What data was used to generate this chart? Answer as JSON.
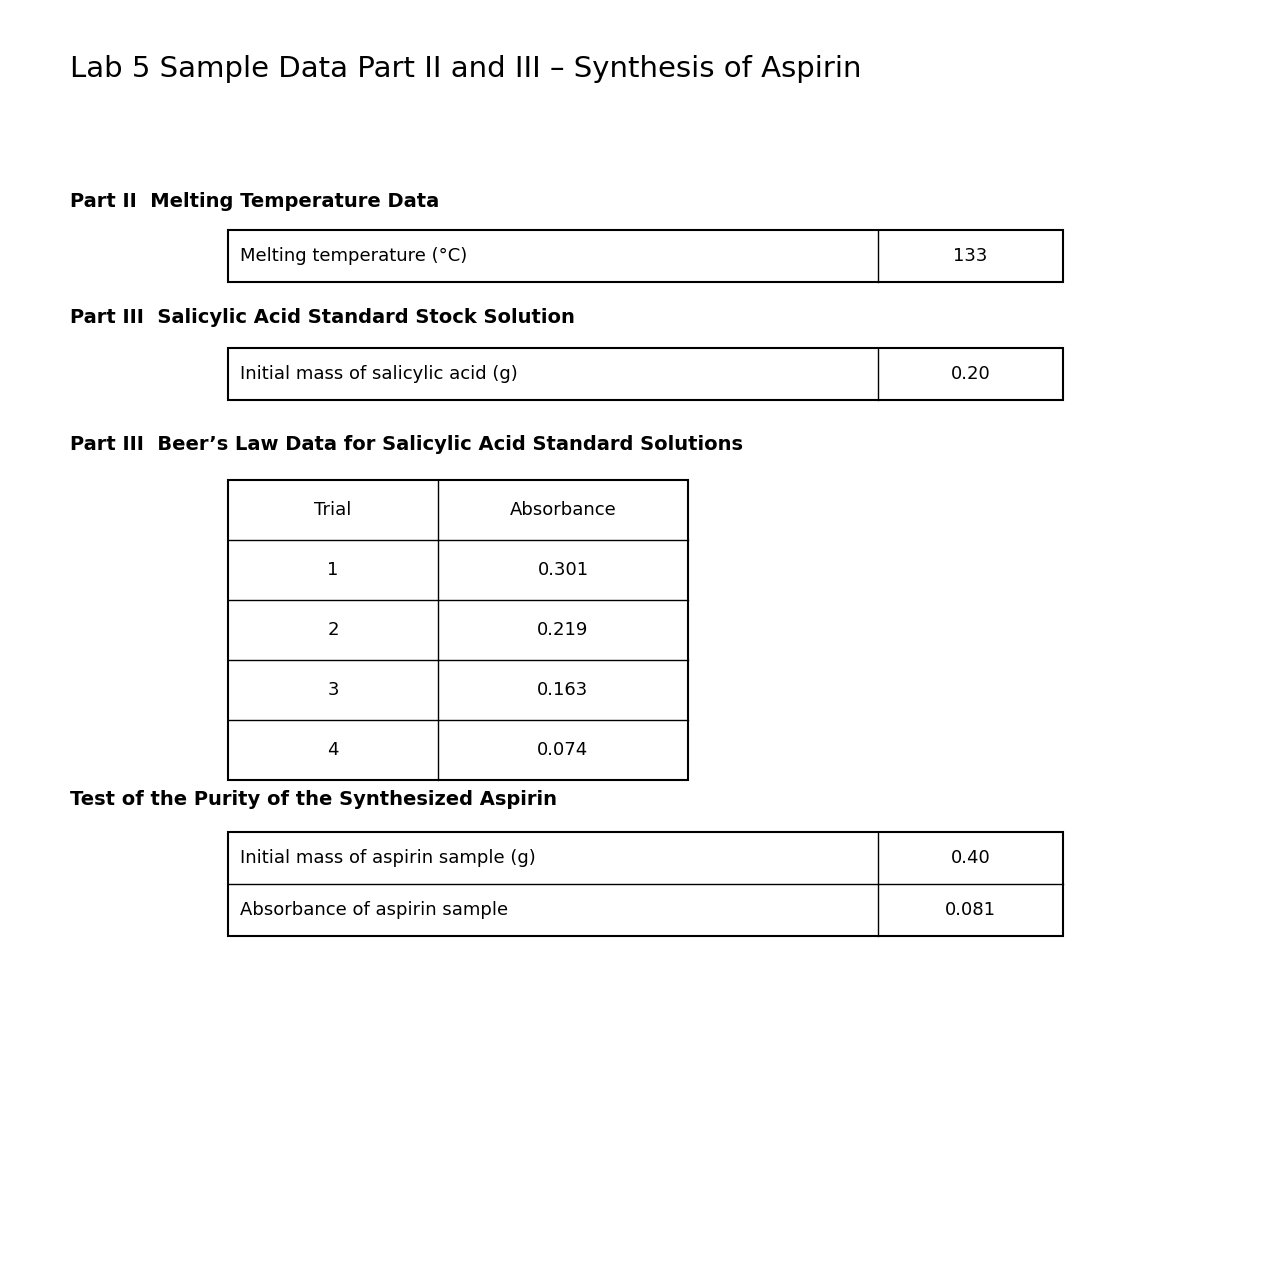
{
  "title": "Lab 5 Sample Data Part II and III – Synthesis of Aspirin",
  "title_fontsize": 21,
  "section1_header": "Part II  Melting Temperature Data",
  "section1_table": {
    "rows": [
      [
        "Melting temperature (°C)",
        "133"
      ]
    ]
  },
  "section2_header": "Part III  Salicylic Acid Standard Stock Solution",
  "section2_table": {
    "rows": [
      [
        "Initial mass of salicylic acid (g)",
        "0.20"
      ]
    ]
  },
  "section3_header": "Part III  Beer’s Law Data for Salicylic Acid Standard Solutions",
  "section3_table": {
    "col_headers": [
      "Trial",
      "Absorbance"
    ],
    "rows": [
      [
        "1",
        "0.301"
      ],
      [
        "2",
        "0.219"
      ],
      [
        "3",
        "0.163"
      ],
      [
        "4",
        "0.074"
      ]
    ]
  },
  "section4_header": "Test of the Purity of the Synthesized Aspirin",
  "section4_table": {
    "rows": [
      [
        "Initial mass of aspirin sample (g)",
        "0.40"
      ],
      [
        "Absorbance of aspirin sample",
        "0.081"
      ]
    ]
  },
  "header_fontsize": 14,
  "cell_fontsize": 13,
  "bold_header_fontsize": 14
}
